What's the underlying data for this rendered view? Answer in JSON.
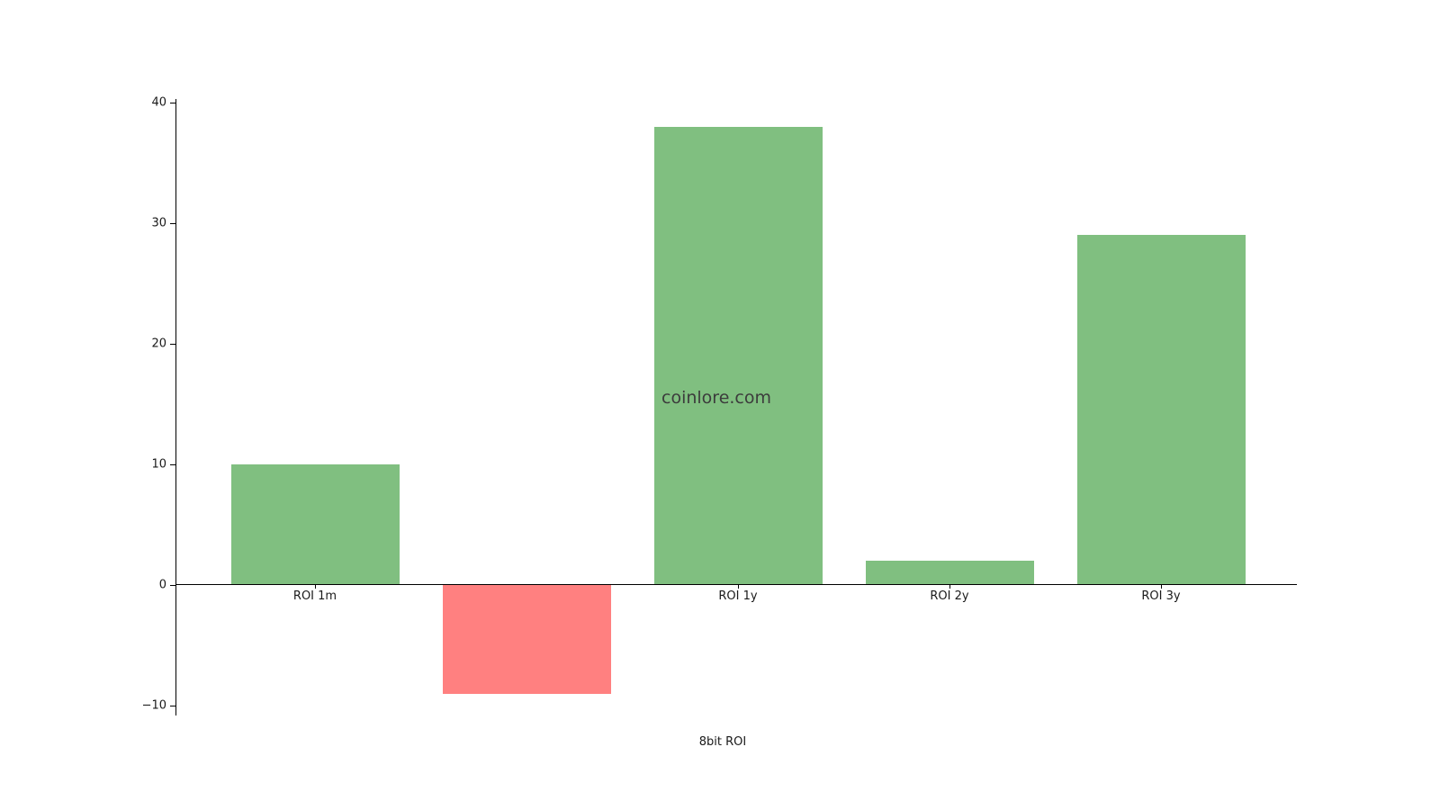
{
  "chart_data": {
    "type": "bar",
    "title": "8bit ROI",
    "watermark": "coinlore.com",
    "categories": [
      "ROI 1m",
      "",
      "ROI 1y",
      "ROI 2y",
      "ROI 3y"
    ],
    "values": [
      10,
      -9,
      38,
      2,
      29
    ],
    "series": [
      {
        "name": "8bit ROI",
        "values": [
          10,
          -9,
          38,
          2,
          29
        ]
      }
    ],
    "bar_colors": [
      "#80BF80",
      "#FF8080",
      "#80BF80",
      "#80BF80",
      "#80BF80"
    ],
    "positive_color": "#80BF80",
    "negative_color": "#FF8080",
    "yticks": [
      -10,
      0,
      10,
      20,
      30,
      40
    ],
    "ylim": [
      -10.8,
      40
    ],
    "xlabel": "8bit ROI",
    "ylabel": "",
    "grid": false,
    "legend_position": "none",
    "axis_color": "#000000",
    "text_color": "#1a1a1a",
    "watermark_color": "#3c3c3c",
    "background_color": "#ffffff"
  }
}
